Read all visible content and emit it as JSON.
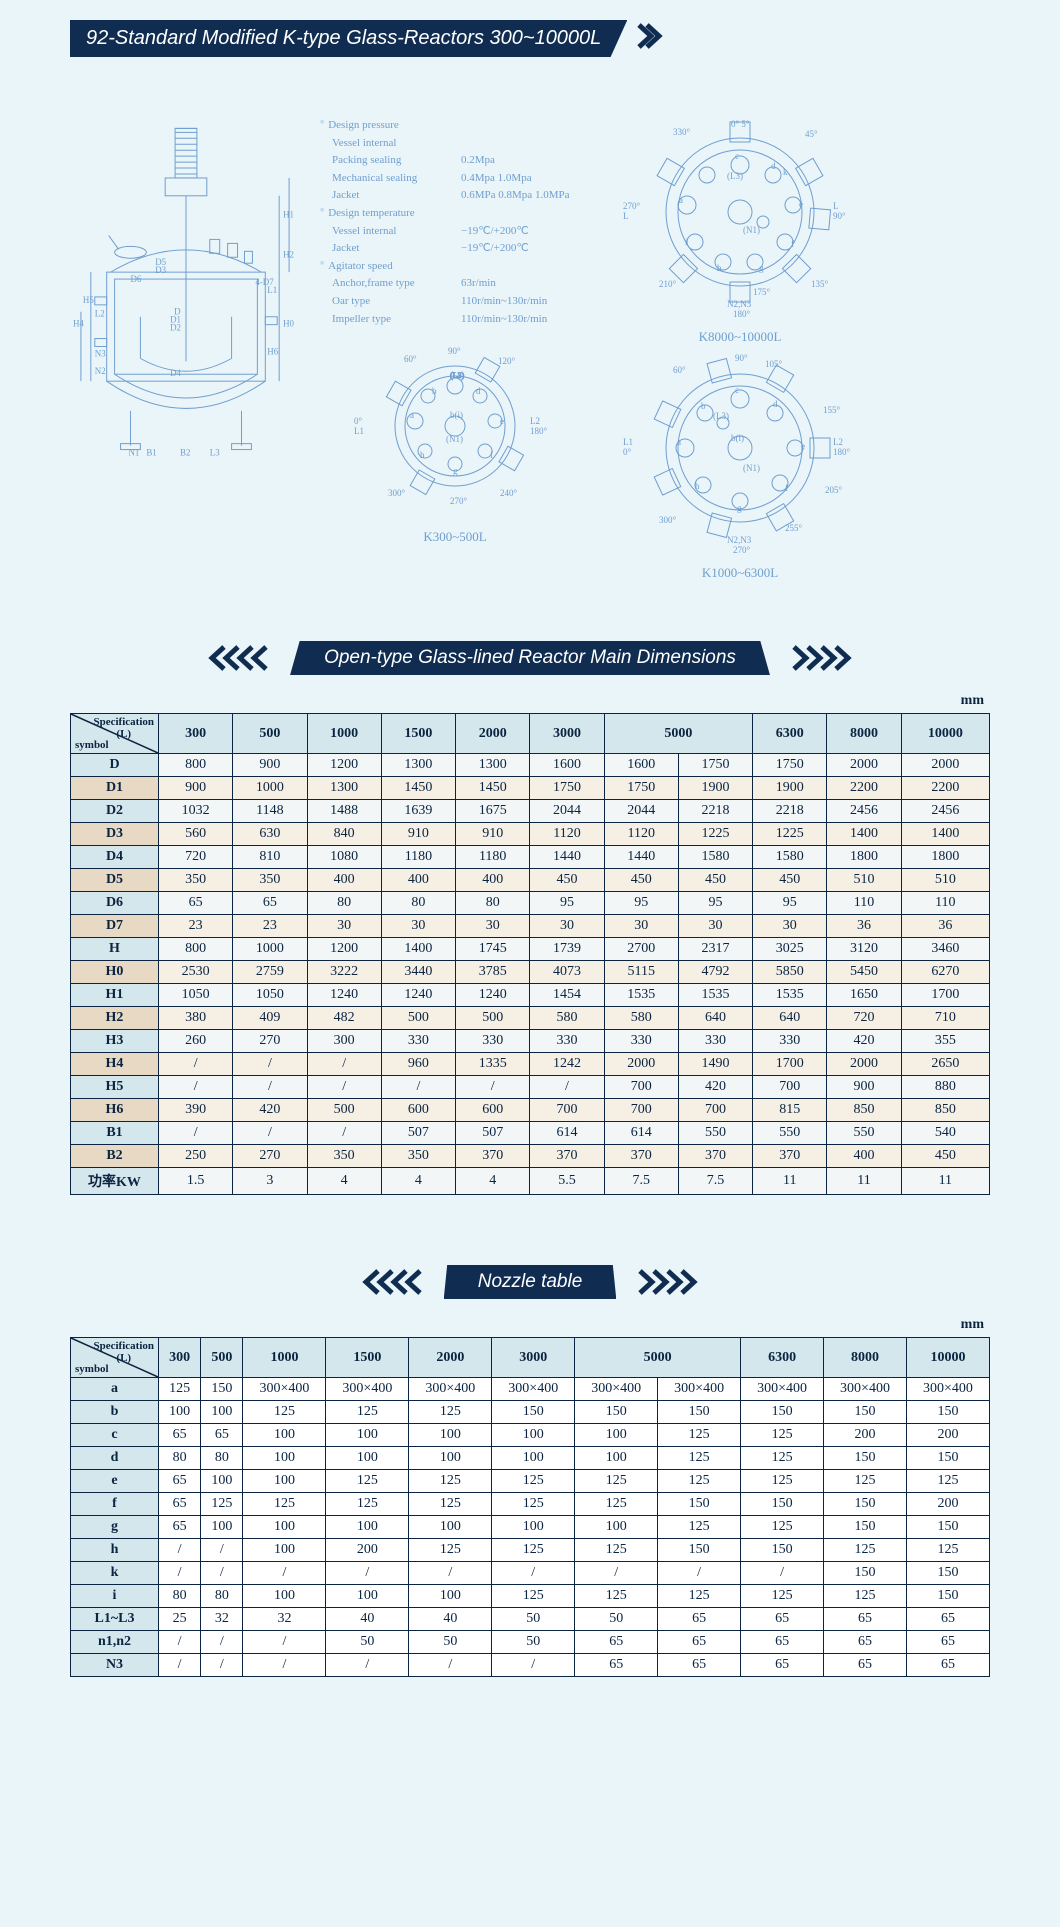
{
  "colors": {
    "dark_navy": "#102d51",
    "page_bg": "#eaf5f9",
    "blueprint": "#6f9ecf",
    "th_bg": "#d4e7ec",
    "row_even_bg": "#f6efe4",
    "row_even_th": "#e8d9c5",
    "row_odd_bg": "#f2f6f7",
    "text": "#0b2441"
  },
  "title": "92-Standard Modified K-type Glass-Reactors 300~10000L",
  "specs": {
    "design_pressure_label": "Design pressure",
    "vessel_internal_label": "Vessel internal",
    "packing_sealing_label": "Packing sealing",
    "packing_sealing_value": "0.2Mpa",
    "mechanical_sealing_label": "Mechanical sealing",
    "mechanical_sealing_value": "0.4Mpa   1.0Mpa",
    "jacket1_label": "Jacket",
    "jacket1_value": "0.6MPa  0.8Mpa  1.0MPa",
    "design_temperature_label": "Design temperature",
    "vessel_internal2_label": "Vessel internal",
    "vessel_internal2_value": "−19℃/+200℃",
    "jacket2_label": "Jacket",
    "jacket2_value": "−19℃/+200℃",
    "agitator_speed_label": "Agitator speed",
    "anchor_label": "Anchor,frame type",
    "anchor_value": "63r/min",
    "oar_label": "Oar type",
    "oar_value": "110r/min~130r/min",
    "impeller_label": "Impeller type",
    "impeller_value": "110r/min~130r/min"
  },
  "diagram_labels": {
    "k300": "K300~500L",
    "k8000": "K8000~10000L",
    "k1000": "K1000~6300L"
  },
  "section1_title": "Open-type Glass-lined Reactor Main Dimensions",
  "section2_title": "Nozzle table",
  "unit": "mm",
  "corner_top": "Specification",
  "corner_top_sub": "(L)",
  "corner_bot": "symbol",
  "table1": {
    "columns": [
      "300",
      "500",
      "1000",
      "1500",
      "2000",
      "3000",
      "5000",
      "5000b",
      "6300",
      "8000",
      "10000"
    ],
    "column_labels": [
      "300",
      "500",
      "1000",
      "1500",
      "2000",
      "3000",
      "5000",
      "6300",
      "8000",
      "10000"
    ],
    "col_5000_span": 2,
    "rows": [
      {
        "sym": "D",
        "v": [
          "800",
          "900",
          "1200",
          "1300",
          "1300",
          "1600",
          "1600",
          "1750",
          "1750",
          "2000",
          "2000"
        ]
      },
      {
        "sym": "D1",
        "v": [
          "900",
          "1000",
          "1300",
          "1450",
          "1450",
          "1750",
          "1750",
          "1900",
          "1900",
          "2200",
          "2200"
        ]
      },
      {
        "sym": "D2",
        "v": [
          "1032",
          "1148",
          "1488",
          "1639",
          "1675",
          "2044",
          "2044",
          "2218",
          "2218",
          "2456",
          "2456"
        ]
      },
      {
        "sym": "D3",
        "v": [
          "560",
          "630",
          "840",
          "910",
          "910",
          "1120",
          "1120",
          "1225",
          "1225",
          "1400",
          "1400"
        ]
      },
      {
        "sym": "D4",
        "v": [
          "720",
          "810",
          "1080",
          "1180",
          "1180",
          "1440",
          "1440",
          "1580",
          "1580",
          "1800",
          "1800"
        ]
      },
      {
        "sym": "D5",
        "v": [
          "350",
          "350",
          "400",
          "400",
          "400",
          "450",
          "450",
          "450",
          "450",
          "510",
          "510"
        ]
      },
      {
        "sym": "D6",
        "v": [
          "65",
          "65",
          "80",
          "80",
          "80",
          "95",
          "95",
          "95",
          "95",
          "110",
          "110"
        ]
      },
      {
        "sym": "D7",
        "v": [
          "23",
          "23",
          "30",
          "30",
          "30",
          "30",
          "30",
          "30",
          "30",
          "36",
          "36"
        ]
      },
      {
        "sym": "H",
        "v": [
          "800",
          "1000",
          "1200",
          "1400",
          "1745",
          "1739",
          "2700",
          "2317",
          "3025",
          "3120",
          "3460"
        ]
      },
      {
        "sym": "H0",
        "v": [
          "2530",
          "2759",
          "3222",
          "3440",
          "3785",
          "4073",
          "5115",
          "4792",
          "5850",
          "5450",
          "6270"
        ]
      },
      {
        "sym": "H1",
        "v": [
          "1050",
          "1050",
          "1240",
          "1240",
          "1240",
          "1454",
          "1535",
          "1535",
          "1535",
          "1650",
          "1700"
        ]
      },
      {
        "sym": "H2",
        "v": [
          "380",
          "409",
          "482",
          "500",
          "500",
          "580",
          "580",
          "640",
          "640",
          "720",
          "710"
        ]
      },
      {
        "sym": "H3",
        "v": [
          "260",
          "270",
          "300",
          "330",
          "330",
          "330",
          "330",
          "330",
          "330",
          "420",
          "355"
        ]
      },
      {
        "sym": "H4",
        "v": [
          "/",
          "/",
          "/",
          "960",
          "1335",
          "1242",
          "2000",
          "1490",
          "1700",
          "2000",
          "2650"
        ]
      },
      {
        "sym": "H5",
        "v": [
          "/",
          "/",
          "/",
          "/",
          "/",
          "/",
          "700",
          "420",
          "700",
          "900",
          "880"
        ]
      },
      {
        "sym": "H6",
        "v": [
          "390",
          "420",
          "500",
          "600",
          "600",
          "700",
          "700",
          "700",
          "815",
          "850",
          "850"
        ]
      },
      {
        "sym": "B1",
        "v": [
          "/",
          "/",
          "/",
          "507",
          "507",
          "614",
          "614",
          "550",
          "550",
          "550",
          "540"
        ]
      },
      {
        "sym": "B2",
        "v": [
          "250",
          "270",
          "350",
          "350",
          "370",
          "370",
          "370",
          "370",
          "370",
          "400",
          "450"
        ]
      },
      {
        "sym": "功率KW",
        "v": [
          "1.5",
          "3",
          "4",
          "4",
          "4",
          "5.5",
          "7.5",
          "7.5",
          "11",
          "11",
          "11"
        ]
      }
    ]
  },
  "table2": {
    "column_labels": [
      "300",
      "500",
      "1000",
      "1500",
      "2000",
      "3000",
      "5000",
      "6300",
      "8000",
      "10000"
    ],
    "col_5000_span": 2,
    "rows": [
      {
        "sym": "a",
        "v": [
          "125",
          "150",
          "300×400",
          "300×400",
          "300×400",
          "300×400",
          "300×400",
          "300×400",
          "300×400",
          "300×400",
          "300×400"
        ]
      },
      {
        "sym": "b",
        "v": [
          "100",
          "100",
          "125",
          "125",
          "125",
          "150",
          "150",
          "150",
          "150",
          "150",
          "150"
        ]
      },
      {
        "sym": "c",
        "v": [
          "65",
          "65",
          "100",
          "100",
          "100",
          "100",
          "100",
          "125",
          "125",
          "200",
          "200"
        ]
      },
      {
        "sym": "d",
        "v": [
          "80",
          "80",
          "100",
          "100",
          "100",
          "100",
          "100",
          "125",
          "125",
          "150",
          "150"
        ]
      },
      {
        "sym": "e",
        "v": [
          "65",
          "100",
          "100",
          "125",
          "125",
          "125",
          "125",
          "125",
          "125",
          "125",
          "125"
        ]
      },
      {
        "sym": "f",
        "v": [
          "65",
          "125",
          "125",
          "125",
          "125",
          "125",
          "125",
          "150",
          "150",
          "150",
          "200"
        ]
      },
      {
        "sym": "g",
        "v": [
          "65",
          "100",
          "100",
          "100",
          "100",
          "100",
          "100",
          "125",
          "125",
          "150",
          "150"
        ]
      },
      {
        "sym": "h",
        "v": [
          "/",
          "/",
          "100",
          "200",
          "125",
          "125",
          "125",
          "150",
          "150",
          "125",
          "125"
        ]
      },
      {
        "sym": "k",
        "v": [
          "/",
          "/",
          "/",
          "/",
          "/",
          "/",
          "/",
          "/",
          "/",
          "150",
          "150"
        ]
      },
      {
        "sym": "i",
        "v": [
          "80",
          "80",
          "100",
          "100",
          "100",
          "125",
          "125",
          "125",
          "125",
          "125",
          "150"
        ]
      },
      {
        "sym": "L1~L3",
        "v": [
          "25",
          "32",
          "32",
          "40",
          "40",
          "50",
          "50",
          "65",
          "65",
          "65",
          "65"
        ]
      },
      {
        "sym": "n1,n2",
        "v": [
          "/",
          "/",
          "/",
          "50",
          "50",
          "50",
          "65",
          "65",
          "65",
          "65",
          "65"
        ]
      },
      {
        "sym": "N3",
        "v": [
          "/",
          "/",
          "/",
          "/",
          "/",
          "/",
          "65",
          "65",
          "65",
          "65",
          "65"
        ]
      }
    ]
  }
}
